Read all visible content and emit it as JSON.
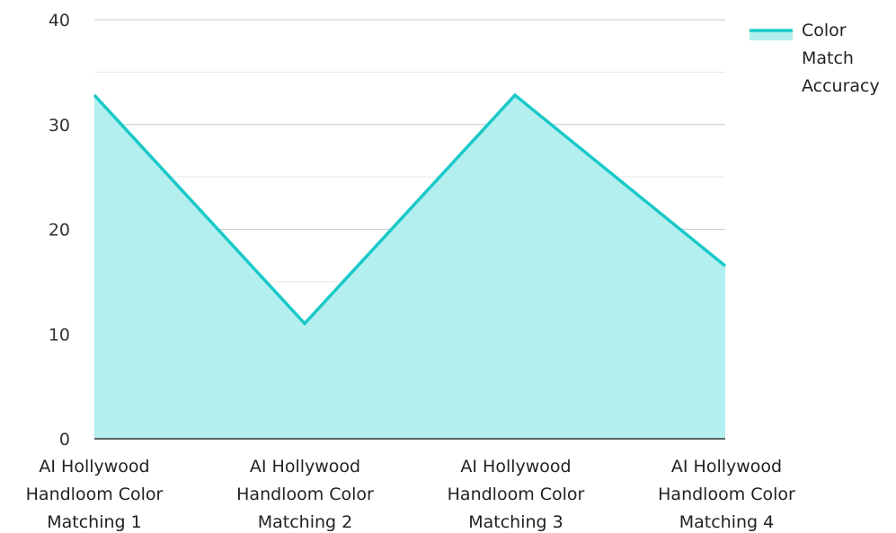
{
  "chart_data": {
    "type": "area",
    "categories": [
      [
        "AI Hollywood",
        "Handloom Color",
        "Matching 1"
      ],
      [
        "AI Hollywood",
        "Handloom Color",
        "Matching 2"
      ],
      [
        "AI Hollywood",
        "Handloom Color",
        "Matching 3"
      ],
      [
        "AI Hollywood",
        "Handloom Color",
        "Matching 4"
      ]
    ],
    "series": [
      {
        "name_lines": [
          "Color",
          "Match",
          "Accuracy"
        ],
        "values": [
          32.8,
          11.0,
          32.8,
          16.5
        ],
        "stroke_color": "#19c9c8",
        "fill_color": "#b2efee"
      }
    ],
    "ylim": [
      0,
      40
    ],
    "yticks": [
      0,
      10,
      20,
      30,
      40
    ],
    "minor_step": 5,
    "grid": true,
    "legend": "top-right",
    "title": "",
    "xlabel": "",
    "ylabel": ""
  }
}
